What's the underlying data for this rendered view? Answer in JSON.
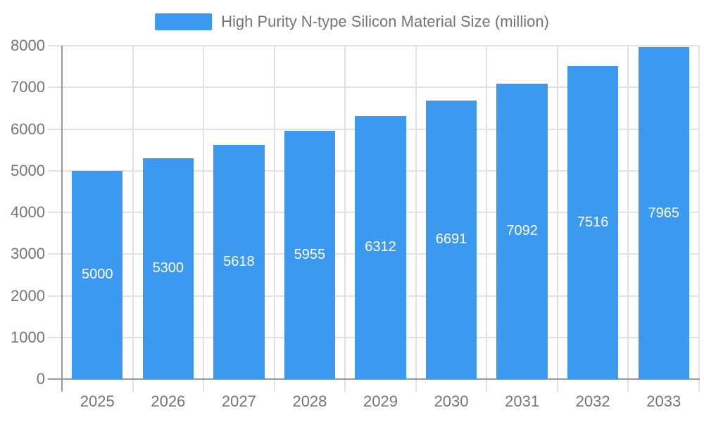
{
  "chart_data": {
    "type": "bar",
    "title": "",
    "series_name": "High Purity N-type Silicon Material Size (million)",
    "categories": [
      "2025",
      "2026",
      "2027",
      "2028",
      "2029",
      "2030",
      "2031",
      "2032",
      "2033"
    ],
    "values": [
      5000,
      5300,
      5618,
      5955,
      6312,
      6691,
      7092,
      7516,
      7965
    ],
    "xlabel": "",
    "ylabel": "",
    "ylim": [
      0,
      8000
    ],
    "ytick_interval": 1000,
    "ytick_labels": [
      "0",
      "1000",
      "2000",
      "3000",
      "4000",
      "5000",
      "6000",
      "7000",
      "8000"
    ],
    "grid": true,
    "legend_position": "top-center",
    "value_label_position": "inside-center",
    "colors": {
      "bar": "#3B9AF0",
      "bar_value_text": "#FFFFFF",
      "axis_text": "#757575",
      "grid_line": "#E2E2E2",
      "axis_line": "#999999",
      "background": "#FFFFFF"
    }
  }
}
